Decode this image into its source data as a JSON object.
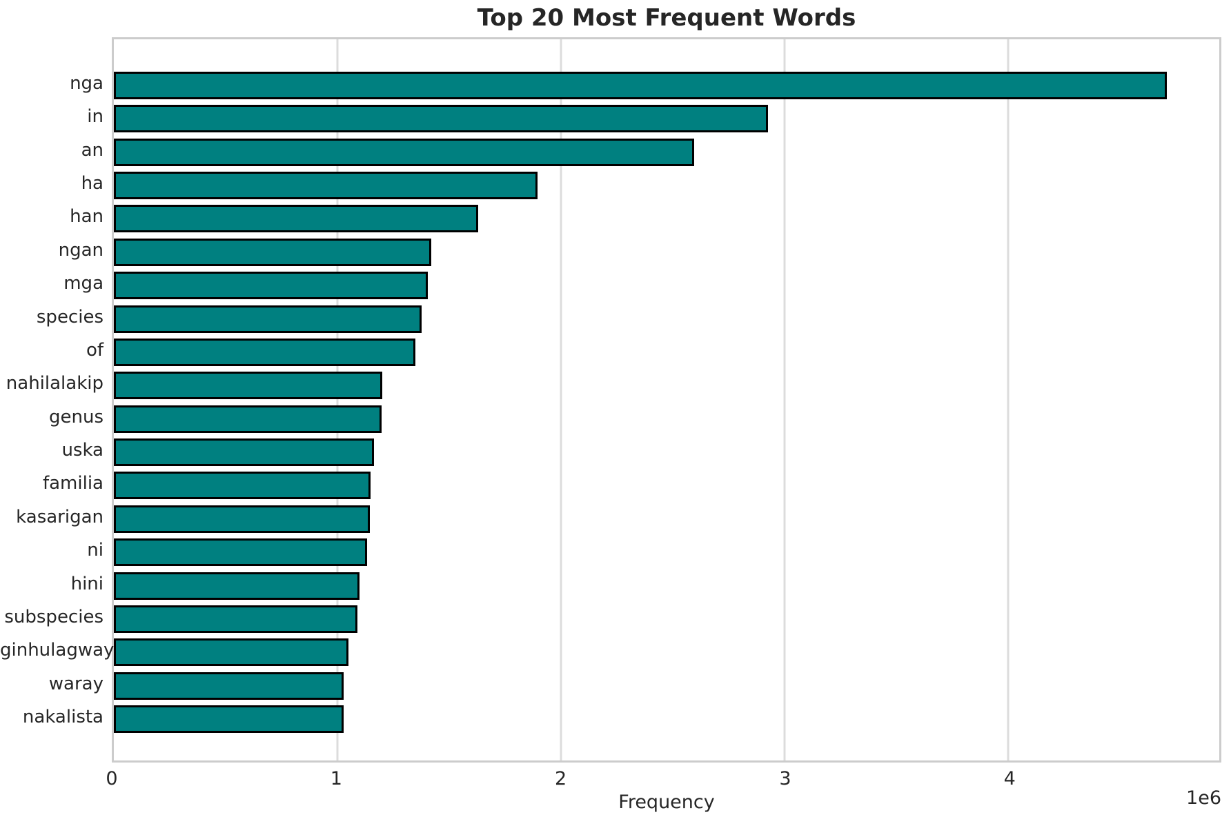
{
  "chart_data": {
    "type": "bar",
    "orientation": "horizontal",
    "title": "Top 20 Most Frequent Words",
    "xlabel": "Frequency",
    "ylabel": "",
    "offset_text": "1e6",
    "categories": [
      "nga",
      "in",
      "an",
      "ha",
      "han",
      "ngan",
      "mga",
      "species",
      "of",
      "nahilalakip",
      "genus",
      "uska",
      "familia",
      "kasarigan",
      "ni",
      "hini",
      "subspecies",
      "ginhulagway",
      "waray",
      "nakalista"
    ],
    "values": [
      4708000,
      2925000,
      2595000,
      1894000,
      1629000,
      1418000,
      1403000,
      1377000,
      1349000,
      1201000,
      1197000,
      1164000,
      1148000,
      1146000,
      1132000,
      1098000,
      1088000,
      1049000,
      1029000,
      1026000
    ],
    "xticks": [
      0,
      1000000,
      2000000,
      3000000,
      4000000
    ],
    "xtick_labels": [
      "0",
      "1",
      "2",
      "3",
      "4"
    ],
    "xlim": [
      0,
      4943000
    ],
    "grid": true,
    "legend_position": "none",
    "bar_color": "#008080",
    "bar_edge_color": "#000000",
    "grid_color": "#dcdcdc",
    "spine_color": "#cccccc",
    "text_color": "#262626"
  }
}
